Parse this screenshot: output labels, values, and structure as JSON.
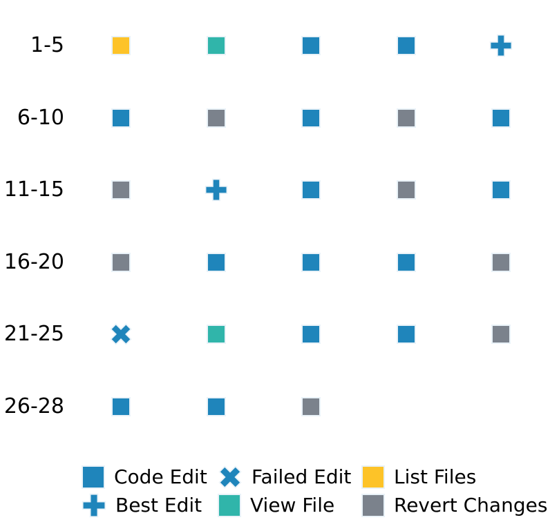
{
  "colors": {
    "blue": "#1f85bb",
    "teal": "#30b5aa",
    "yellow": "#fdc328",
    "gray": "#7b828c",
    "halo": "#e9f2f8",
    "text": "#000000",
    "background": "#ffffff"
  },
  "markers_by_action": {
    "Code Edit": {
      "marker": "square",
      "color": "blue"
    },
    "Failed Edit": {
      "marker": "x",
      "color": "blue"
    },
    "List Files": {
      "marker": "square",
      "color": "yellow"
    },
    "Best Edit": {
      "marker": "plus",
      "color": "blue"
    },
    "View File": {
      "marker": "square",
      "color": "teal"
    },
    "Revert Changes": {
      "marker": "square",
      "color": "gray"
    }
  },
  "chart_data": {
    "type": "scatter",
    "title": "",
    "xlabel": "",
    "ylabel": "",
    "grid_lines": false,
    "legend_position": "bottom",
    "rows": [
      "1-5",
      "6-10",
      "11-15",
      "16-20",
      "21-25",
      "26-28"
    ],
    "columns_per_row": 5,
    "grid": [
      [
        "List Files",
        "View File",
        "Code Edit",
        "Code Edit",
        "Best Edit"
      ],
      [
        "Code Edit",
        "Revert Changes",
        "Code Edit",
        "Revert Changes",
        "Code Edit"
      ],
      [
        "Revert Changes",
        "Best Edit",
        "Code Edit",
        "Revert Changes",
        "Code Edit"
      ],
      [
        "Revert Changes",
        "Code Edit",
        "Code Edit",
        "Code Edit",
        "Revert Changes"
      ],
      [
        "Failed Edit",
        "View File",
        "Code Edit",
        "Code Edit",
        "Revert Changes"
      ],
      [
        "Code Edit",
        "Code Edit",
        "Revert Changes"
      ]
    ],
    "legend": [
      {
        "label": "Code Edit",
        "marker": "square",
        "color": "blue"
      },
      {
        "label": "Failed Edit",
        "marker": "x",
        "color": "blue"
      },
      {
        "label": "List Files",
        "marker": "square",
        "color": "yellow"
      },
      {
        "label": "Best Edit",
        "marker": "plus",
        "color": "blue"
      },
      {
        "label": "View File",
        "marker": "square",
        "color": "teal"
      },
      {
        "label": "Revert Changes",
        "marker": "square",
        "color": "gray"
      }
    ]
  }
}
